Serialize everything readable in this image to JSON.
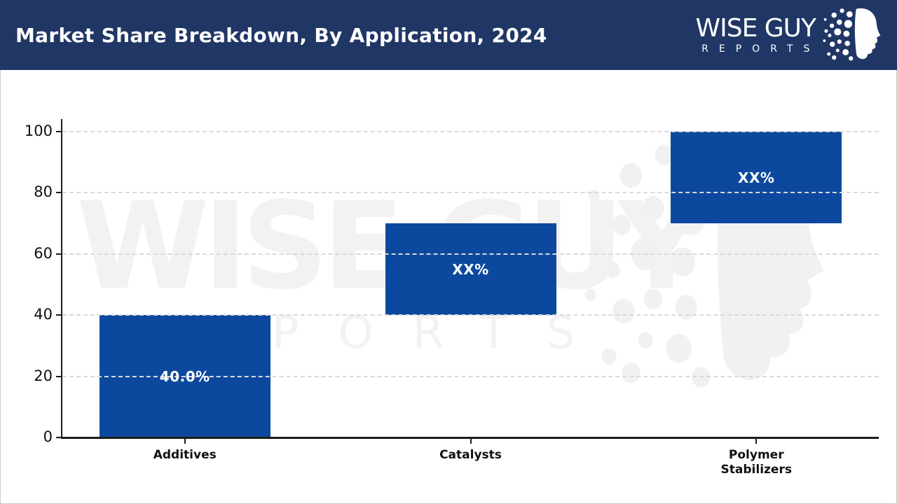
{
  "header": {
    "title": "Market Share Breakdown, By Application, 2024",
    "logo": {
      "wordmark": "WISE GUY",
      "subtitle": "REPORTS"
    }
  },
  "watermark": {
    "line1": "WISE GUY",
    "line2": "REPORTS"
  },
  "chart_data": {
    "type": "bar",
    "variant": "floating-range-bars",
    "title": "Market Share Breakdown, By Application, 2024",
    "categories": [
      "Additives",
      "Catalysts",
      "Polymer Stabilizers"
    ],
    "category_label_lines": [
      [
        "Additives"
      ],
      [
        "Catalysts"
      ],
      [
        "Polymer",
        "Stabilizers"
      ]
    ],
    "bars": [
      {
        "category": "Additives",
        "start": 0,
        "end": 40,
        "label": "40.0%"
      },
      {
        "category": "Catalysts",
        "start": 40,
        "end": 70,
        "label": "XX%"
      },
      {
        "category": "Polymer Stabilizers",
        "start": 70,
        "end": 100,
        "label": "XX%"
      }
    ],
    "yticks": [
      0,
      20,
      40,
      60,
      80,
      100
    ],
    "ylim": [
      0,
      100
    ],
    "xlabel": "",
    "ylabel": "",
    "grid": "horizontal-dashed",
    "legend": "none",
    "colors": {
      "bar": "#0c499e",
      "bar_label_text": "#ffffff",
      "axis": "#1c1c1c",
      "gridline": "#d9d9d9",
      "tick_label": "#111111",
      "header_bg": "#203665",
      "watermark": "#f2f2f2"
    }
  }
}
